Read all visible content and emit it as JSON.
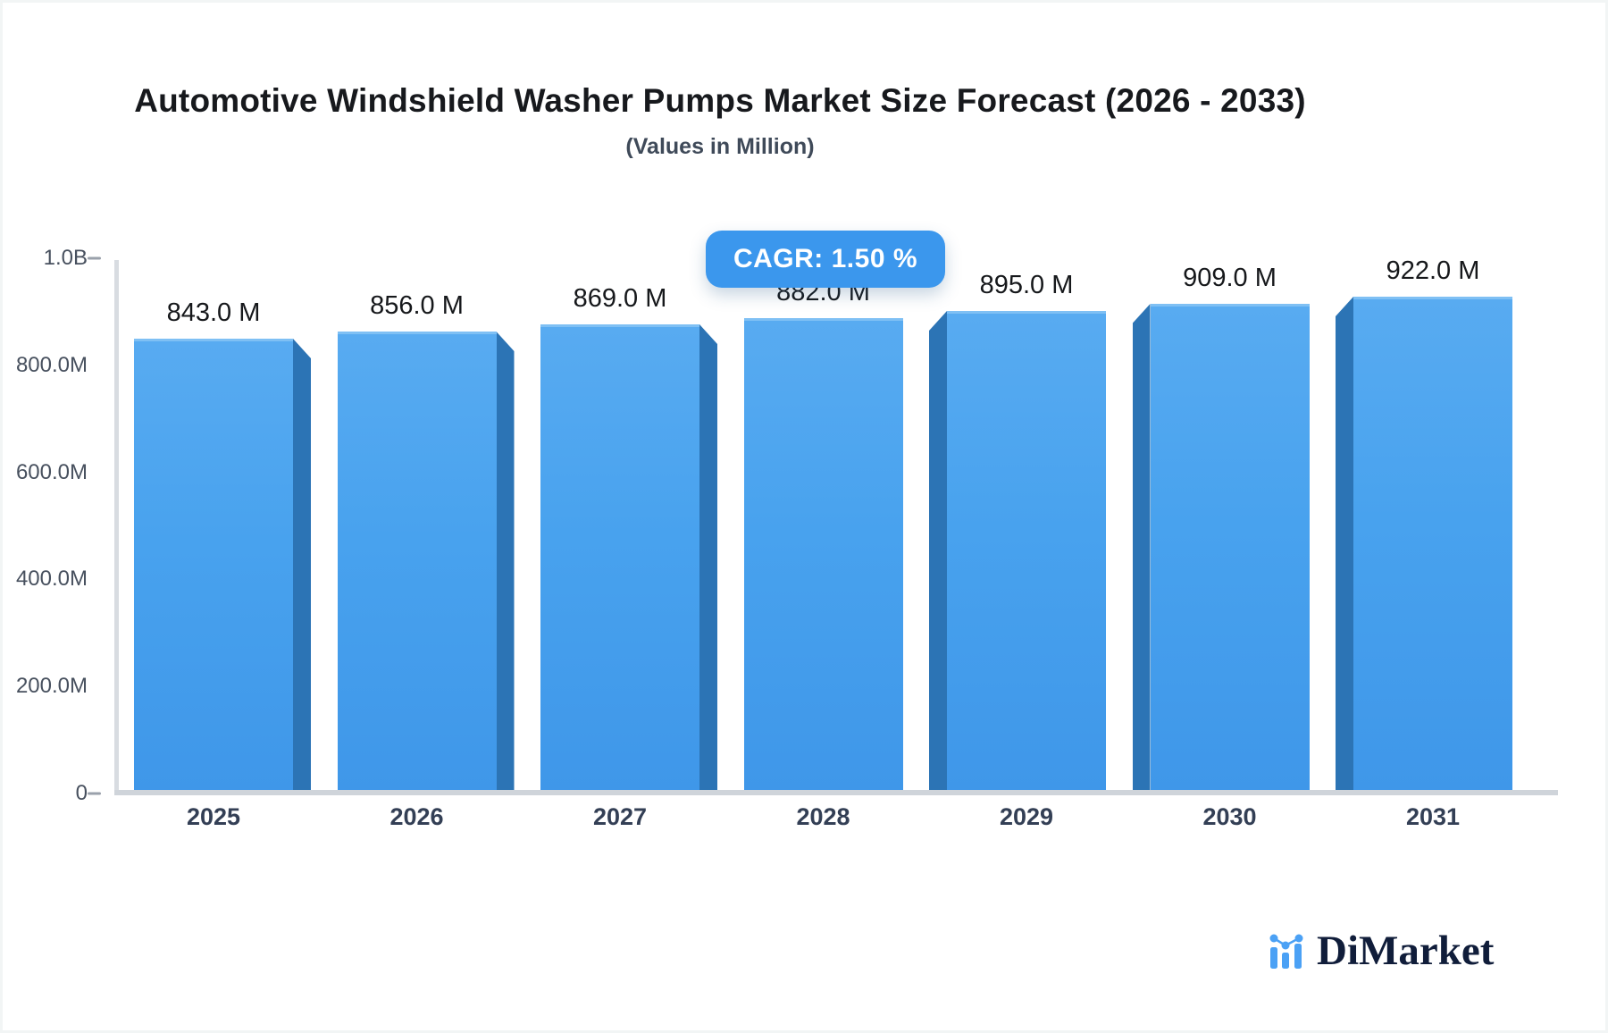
{
  "header": {
    "title": "Automotive Windshield Washer Pumps Market Size Forecast (2026 - 2033)",
    "subtitle": "(Values in Million)"
  },
  "badge": {
    "label": "CAGR: 1.50 %"
  },
  "brand": {
    "name": "DiMarket",
    "icon": "mini-bar-chart-logo"
  },
  "colors": {
    "bar_face": "#48a2ee",
    "bar_side": "#2c74b5",
    "badge_background": "#3b97ed",
    "axis_line": "#d3d7dd",
    "title_text": "#17191d",
    "year_text": "#333f55",
    "logo_blue": "#4ba1f5",
    "logo_navy": "#101d3a"
  },
  "chart_data": {
    "type": "bar",
    "title": "Automotive Windshield Washer Pumps Market Size Forecast (2026 - 2033)",
    "subtitle": "(Values in Million)",
    "categories": [
      "2025",
      "2026",
      "2027",
      "2028",
      "2029",
      "2030",
      "2031"
    ],
    "values": [
      843,
      856,
      869,
      882,
      895,
      909,
      922
    ],
    "value_labels": [
      "843.0 M",
      "856.0 M",
      "869.0 M",
      "882.0 M",
      "895.0 M",
      "909.0 M",
      "922.0 M"
    ],
    "unit": "M",
    "xlabel": "",
    "ylabel": "",
    "ylim": [
      0,
      1000
    ],
    "ytick_labels": [
      "1.0B",
      "800.0M",
      "600.0M",
      "400.0M",
      "200.0M",
      "0"
    ],
    "grid": false,
    "legend": false,
    "annotations": [
      "CAGR: 1.50 %"
    ],
    "style": "3d-bars, perspective sides facing center"
  }
}
